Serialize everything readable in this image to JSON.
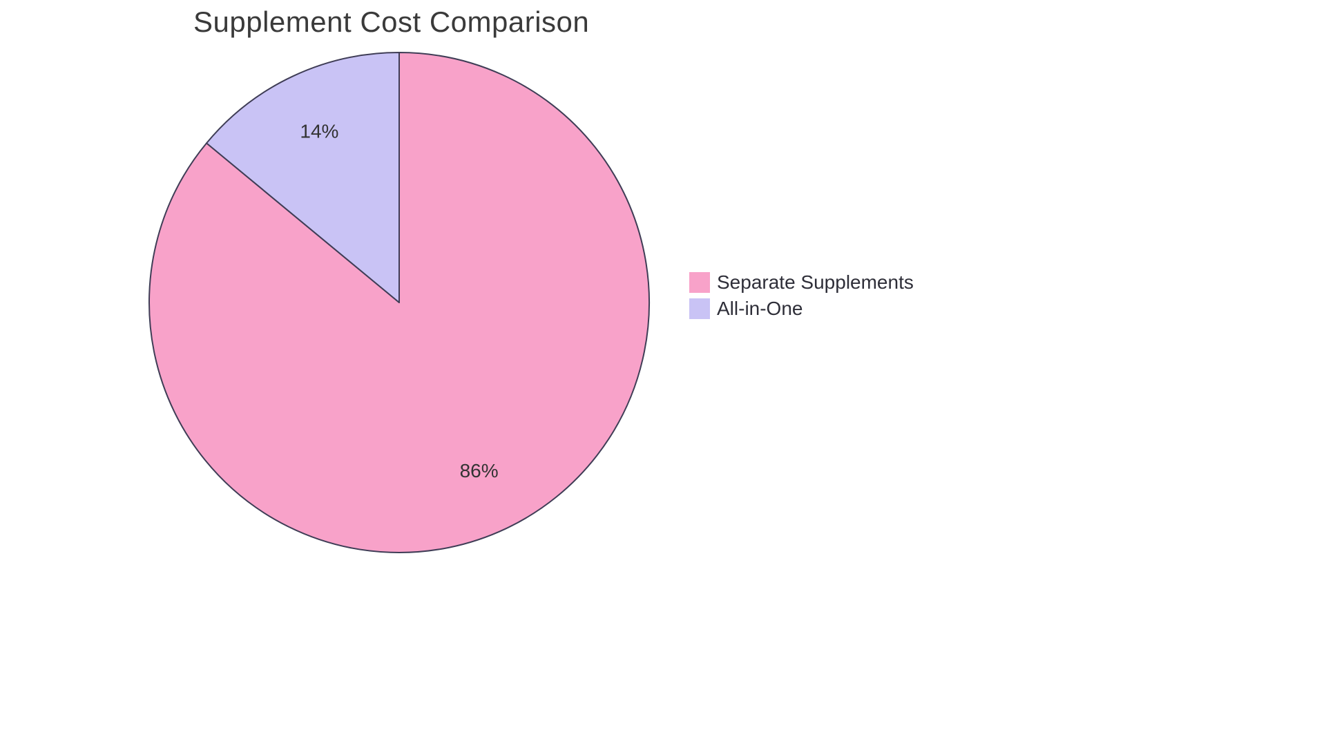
{
  "title": "Supplement Cost Comparison",
  "chart_data": {
    "type": "pie",
    "title": "Supplement Cost Comparison",
    "labels": [
      "Separate Supplements",
      "All-in-One"
    ],
    "values": [
      86,
      14
    ],
    "slice_labels": [
      "86%",
      "14%"
    ],
    "colors": [
      "#f8a2c9",
      "#c9c3f5"
    ],
    "border_color": "#3f3d56",
    "start_angle": "top",
    "direction": "clockwise",
    "legend_position": "right",
    "background": "#ffffff"
  }
}
